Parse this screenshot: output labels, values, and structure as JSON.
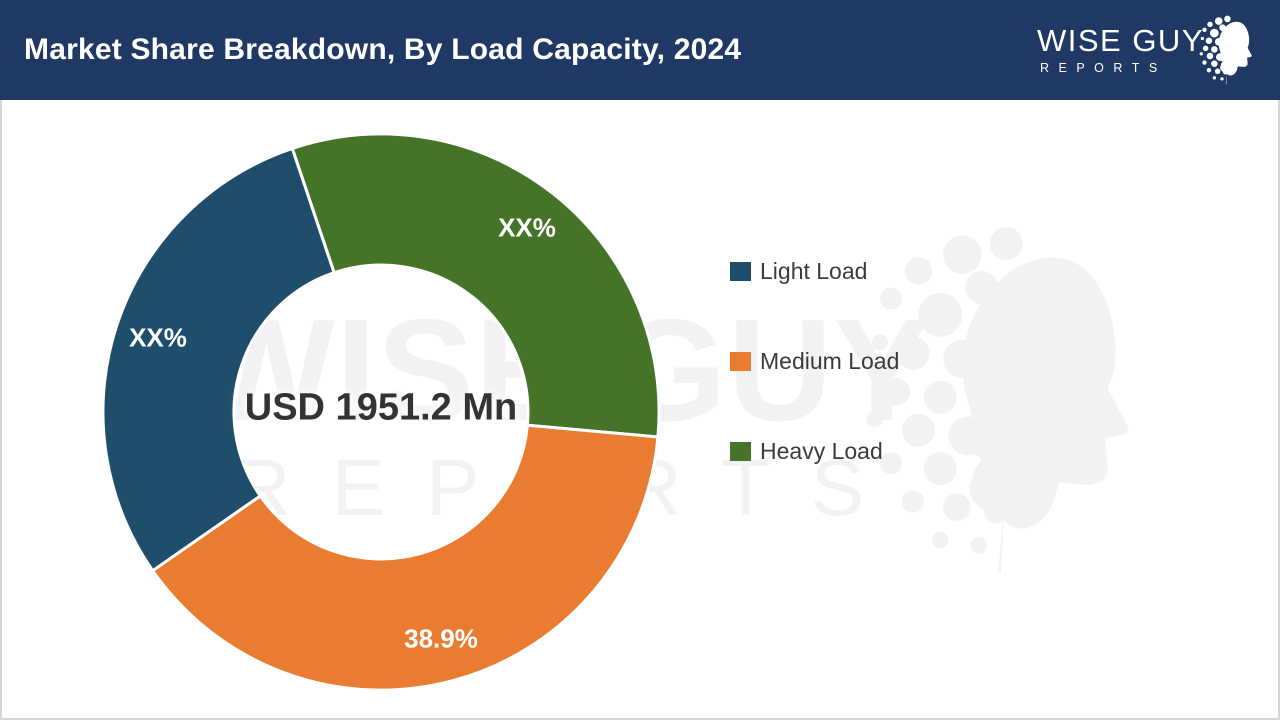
{
  "header": {
    "title": "Market Share Breakdown, By Load Capacity, 2024",
    "background_color": "#1f3864",
    "logo": {
      "name": "WISE GUY",
      "sub": "REPORTS",
      "icon": "dotted-head-profile"
    }
  },
  "watermark": {
    "line1": "WISE GUY",
    "line2": "REPORTS"
  },
  "chart_data": {
    "type": "pie",
    "subtype": "donut",
    "title": "Market Share Breakdown, By Load Capacity, 2024",
    "center_label": "USD 1951.2 Mn",
    "donut_hole_ratio": 0.53,
    "start_angle_deg": -18.6,
    "legend_position": "right-middle",
    "grid": false,
    "segments_draw_order": [
      {
        "name": "Heavy Load",
        "value_pct": 31.6,
        "display_label": "XX%",
        "color": "#457429"
      },
      {
        "name": "Medium Load",
        "value_pct": 38.9,
        "display_label": "38.9%",
        "color": "#e97c30"
      },
      {
        "name": "Light Load",
        "value_pct": 29.5,
        "display_label": "XX%",
        "color": "#1f4e6d"
      }
    ],
    "legend": [
      {
        "label": "Light Load",
        "color": "#1f4e6d"
      },
      {
        "label": "Medium Load",
        "color": "#e97c30"
      },
      {
        "label": "Heavy Load",
        "color": "#457429"
      }
    ],
    "colors": {
      "label_text": "#ffffff",
      "center_text": "#333333",
      "legend_text": "#3b3b3b",
      "watermark": "#f2f2f4"
    }
  }
}
